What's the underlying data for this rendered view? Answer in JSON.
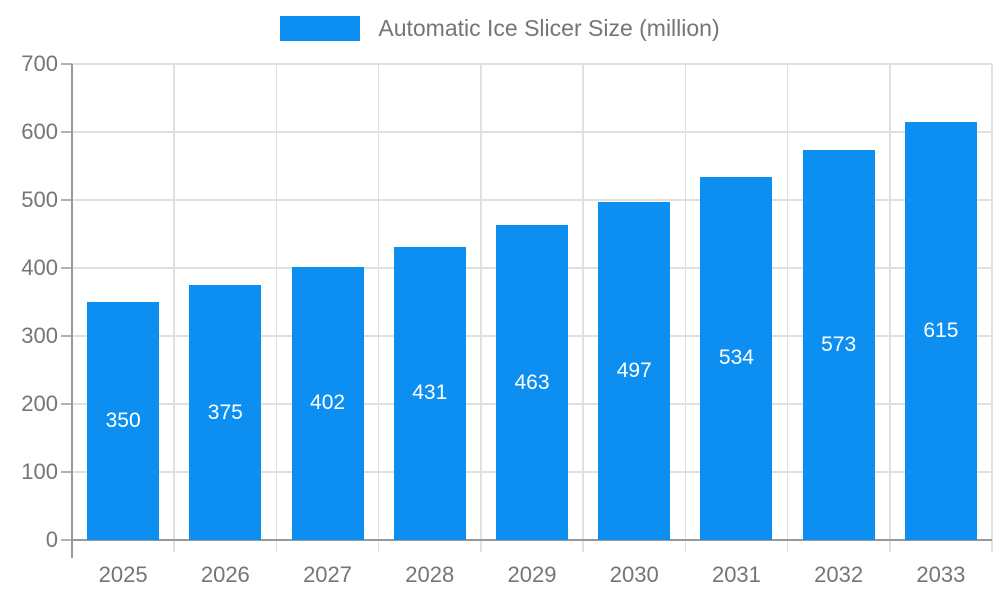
{
  "chart_data": {
    "type": "bar",
    "legend": "Automatic Ice Slicer Size (million)",
    "categories": [
      "2025",
      "2026",
      "2027",
      "2028",
      "2029",
      "2030",
      "2031",
      "2032",
      "2033"
    ],
    "values": [
      350,
      375,
      402,
      431,
      463,
      497,
      534,
      573,
      615
    ],
    "xlabel": "",
    "ylabel": "",
    "ylim": [
      0,
      700
    ],
    "ytick_step": 100,
    "grid": true,
    "legend_position": "top-center",
    "value_labels": "inside-center",
    "colors": {
      "bar": "#0d8ff2",
      "axis_text": "#757575",
      "legend_text": "#757575",
      "gridline": "#e0e0e0",
      "axis_line": "#999999",
      "value_label": "#ffffff"
    }
  }
}
